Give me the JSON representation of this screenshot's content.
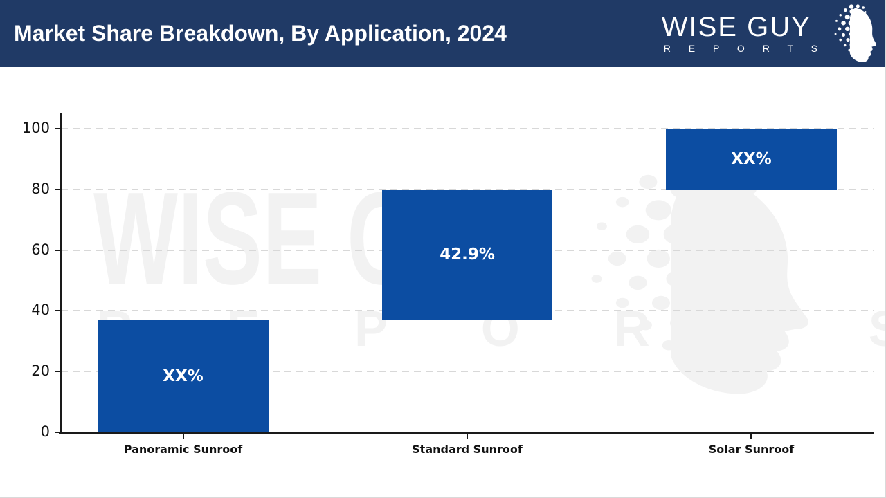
{
  "header": {
    "title": "Market Share Breakdown, By Application, 2024",
    "background_color": "#203a66",
    "logo": {
      "line1": "WISE GUY",
      "line2": "R E P O R T S",
      "head_icon": "head-profile-dots-icon",
      "color": "#ffffff"
    }
  },
  "watermark": {
    "line1": "WISE GUY",
    "line2": "R E P O R T S",
    "color": "#f2f2f2"
  },
  "chart_data": {
    "type": "bar",
    "subtype": "waterfall-floating-bars",
    "title": "Market Share Breakdown, By Application, 2024",
    "categories": [
      "Panoramic Sunroof",
      "Standard Sunroof",
      "Solar Sunroof"
    ],
    "segments": [
      {
        "category": "Panoramic Sunroof",
        "start": 0,
        "end": 37.1,
        "value": 37.1,
        "label": "XX%"
      },
      {
        "category": "Standard Sunroof",
        "start": 37.1,
        "end": 80,
        "value": 42.9,
        "label": "42.9%"
      },
      {
        "category": "Solar Sunroof",
        "start": 80,
        "end": 100,
        "value": 20,
        "label": "XX%"
      }
    ],
    "xlabel": "",
    "ylabel": "",
    "ylim": [
      0,
      100
    ],
    "yticks": [
      0,
      20,
      40,
      60,
      80,
      100
    ],
    "grid": "horizontal-dashed",
    "legend": "none",
    "bar_color": "#0c4da2",
    "bar_label_color": "#ffffff",
    "axis_color": "#1a1a1a",
    "grid_color": "#d8d8d8",
    "tick_label_color": "#111111"
  }
}
